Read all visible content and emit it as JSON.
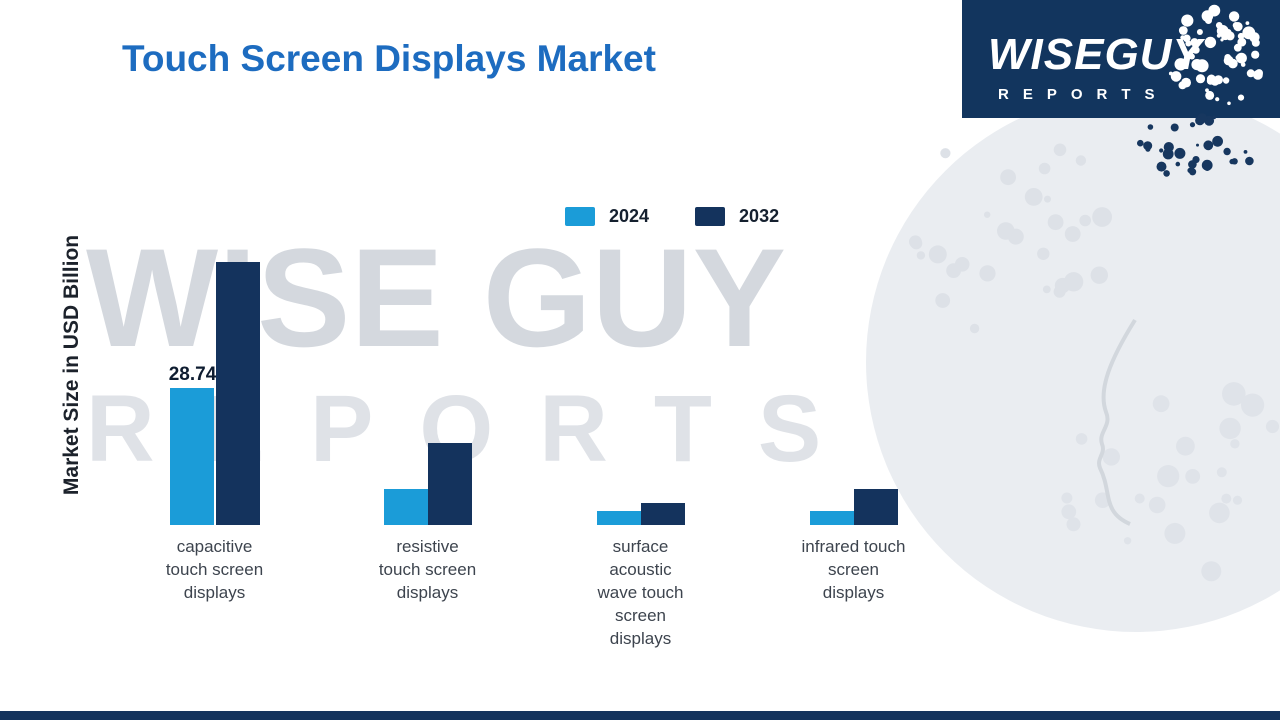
{
  "page": {
    "title": "Touch Screen Displays Market",
    "ylabel": "Market Size in USD Billion"
  },
  "logo": {
    "line1": "WISEGUY",
    "line2": "REPORTS"
  },
  "watermark": {
    "line1": "WISE GUY",
    "line2": "REPORTS"
  },
  "colors": {
    "title_blue": "#1d6cc0",
    "navy": "#14335d",
    "light_blue": "#1b9cd8",
    "blob_gray": "#eaedf1"
  },
  "chart_data": {
    "type": "bar",
    "title": "Touch Screen Displays Market",
    "xlabel": "",
    "ylabel": "Market Size in USD Billion",
    "categories": [
      "capacitive touch screen displays",
      "resistive touch screen displays",
      "surface acoustic wave touch screen displays",
      "infrared touch screen displays"
    ],
    "series": [
      {
        "name": "2024",
        "color": "#1b9cd8",
        "values": [
          28.74,
          7.5,
          2.9,
          2.9
        ]
      },
      {
        "name": "2032",
        "color": "#14335d",
        "values": [
          55.2,
          17.2,
          4.6,
          7.5
        ]
      }
    ],
    "ylim": [
      0,
      65
    ],
    "grid": false,
    "legend_position": "top",
    "annotations": [
      {
        "series": "2024",
        "category_index": 0,
        "text": "28.74"
      }
    ]
  }
}
